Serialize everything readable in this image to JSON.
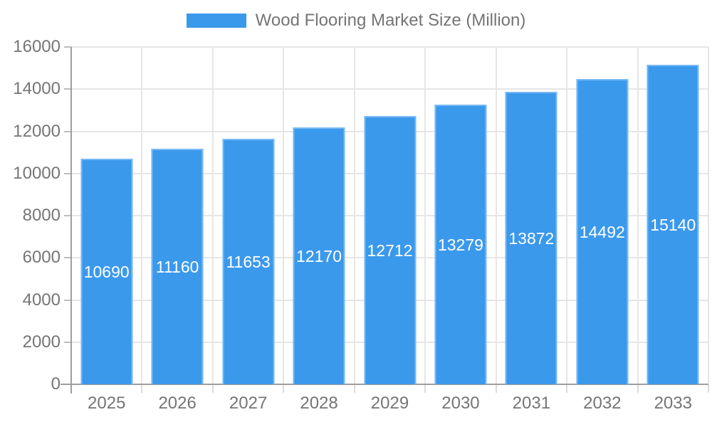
{
  "chart_data": {
    "type": "bar",
    "title": "Wood Flooring Market Size (Million)",
    "categories": [
      "2025",
      "2026",
      "2027",
      "2028",
      "2029",
      "2030",
      "2031",
      "2032",
      "2033"
    ],
    "values": [
      10690,
      11160,
      11653,
      12170,
      12712,
      13279,
      13872,
      14492,
      15140
    ],
    "data_labels": [
      "10690",
      "11160",
      "11653",
      "12170",
      "12712",
      "13279",
      "13872",
      "14492",
      "15140"
    ],
    "xlabel": "",
    "ylabel": "",
    "ylim": [
      0,
      16000
    ],
    "yticks": [
      0,
      2000,
      4000,
      6000,
      8000,
      10000,
      12000,
      14000,
      16000
    ],
    "grid": true,
    "legend_position": "top-center",
    "colors": {
      "bar_fill": "#3b99ec",
      "bar_border": "#79b9f4",
      "grid_line": "#e6e6e6",
      "axis_line": "#9e9e9e",
      "tick_text": "#757575",
      "data_label_text": "#ffffff",
      "background": "#ffffff"
    }
  }
}
